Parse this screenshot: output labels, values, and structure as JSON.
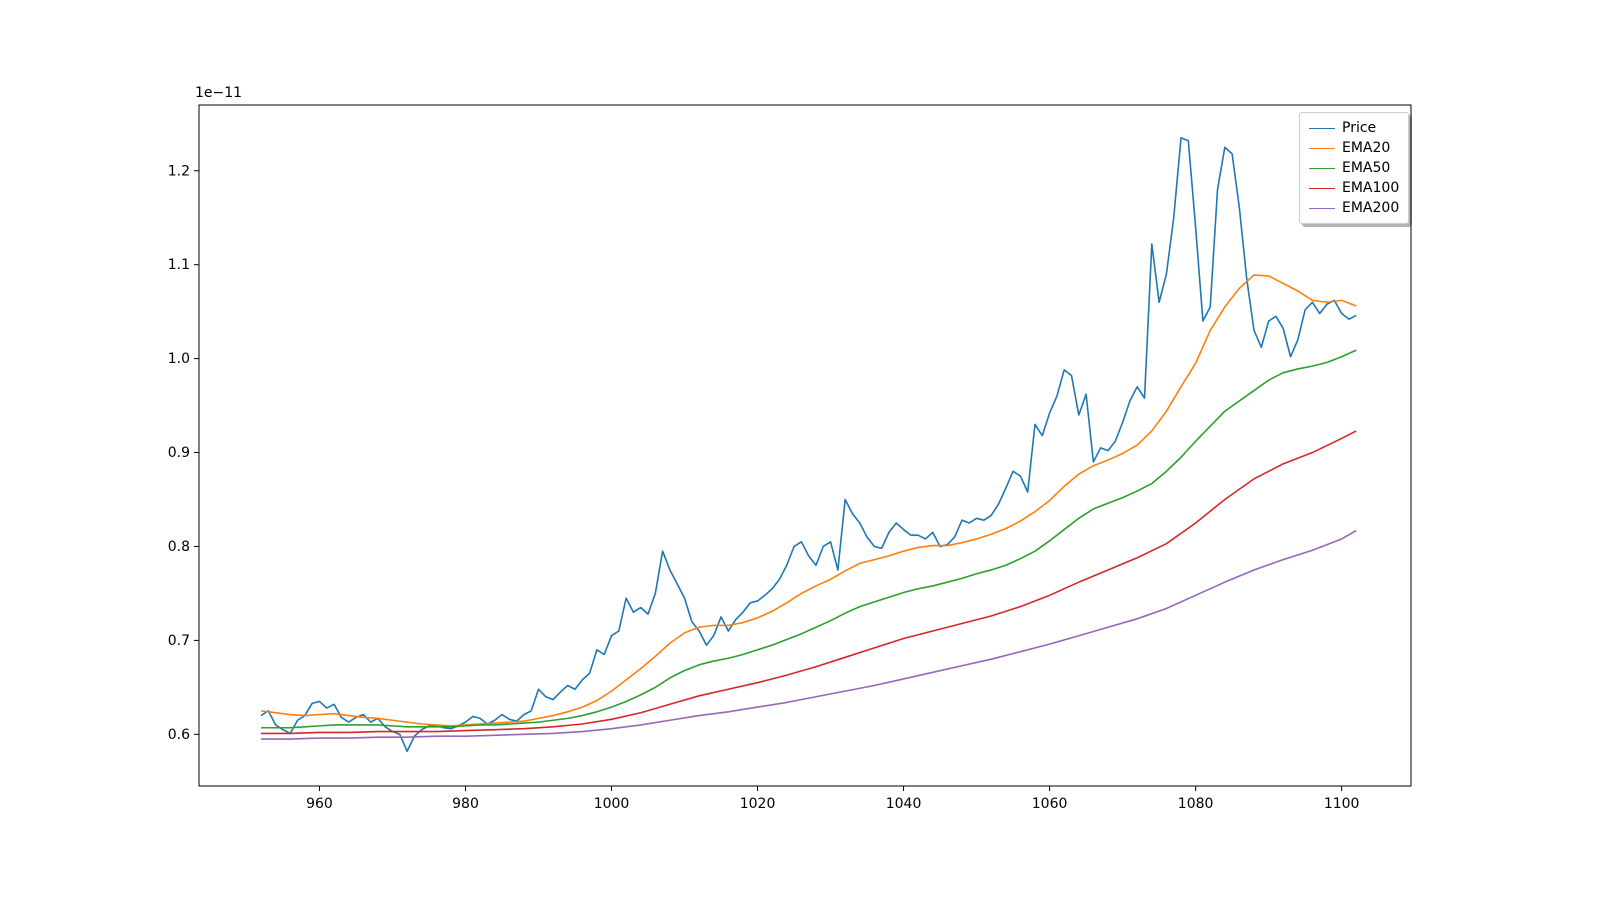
{
  "figure": {
    "background": "#ffffff"
  },
  "chart_data": {
    "type": "line",
    "title": "",
    "xlabel": "",
    "ylabel": "",
    "grid": false,
    "x_axis": {
      "lim": [
        943.5,
        1109.5
      ],
      "ticks": [
        960,
        980,
        1000,
        1020,
        1040,
        1060,
        1080,
        1100
      ],
      "tick_labels": [
        "960",
        "980",
        "1000",
        "1020",
        "1040",
        "1060",
        "1080",
        "1100"
      ]
    },
    "y_axis": {
      "lim": [
        0.545,
        1.27
      ],
      "ticks": [
        0.6,
        0.7,
        0.8,
        0.9,
        1.0,
        1.1,
        1.2
      ],
      "tick_labels": [
        "0.6",
        "0.7",
        "0.8",
        "0.9",
        "1.0",
        "1.1",
        "1.2"
      ],
      "offset_label": "1e−11",
      "scale_factor": "1e-11"
    },
    "legend": {
      "position": "upper right"
    },
    "series": [
      {
        "name": "Price",
        "color": "#1f77b4",
        "x": [
          952,
          953,
          954,
          955,
          956,
          957,
          958,
          959,
          960,
          961,
          962,
          963,
          964,
          965,
          966,
          967,
          968,
          969,
          970,
          971,
          972,
          973,
          974,
          975,
          976,
          977,
          978,
          979,
          980,
          981,
          982,
          983,
          984,
          985,
          986,
          987,
          988,
          989,
          990,
          991,
          992,
          993,
          994,
          995,
          996,
          997,
          998,
          999,
          1000,
          1001,
          1002,
          1003,
          1004,
          1005,
          1006,
          1007,
          1008,
          1009,
          1010,
          1011,
          1012,
          1013,
          1014,
          1015,
          1016,
          1017,
          1018,
          1019,
          1020,
          1021,
          1022,
          1023,
          1024,
          1025,
          1026,
          1027,
          1028,
          1029,
          1030,
          1031,
          1032,
          1033,
          1034,
          1035,
          1036,
          1037,
          1038,
          1039,
          1040,
          1041,
          1042,
          1043,
          1044,
          1045,
          1046,
          1047,
          1048,
          1049,
          1050,
          1051,
          1052,
          1053,
          1054,
          1055,
          1056,
          1057,
          1058,
          1059,
          1060,
          1061,
          1062,
          1063,
          1064,
          1065,
          1066,
          1067,
          1068,
          1069,
          1070,
          1071,
          1072,
          1073,
          1074,
          1075,
          1076,
          1077,
          1078,
          1079,
          1080,
          1081,
          1082,
          1083,
          1084,
          1085,
          1086,
          1087,
          1088,
          1089,
          1090,
          1091,
          1092,
          1093,
          1094,
          1095,
          1096,
          1097,
          1098,
          1099,
          1100,
          1101,
          1102
        ],
        "y": [
          0.62,
          0.625,
          0.61,
          0.605,
          0.601,
          0.615,
          0.62,
          0.633,
          0.635,
          0.628,
          0.632,
          0.618,
          0.613,
          0.618,
          0.621,
          0.613,
          0.617,
          0.608,
          0.603,
          0.6,
          0.582,
          0.598,
          0.605,
          0.609,
          0.61,
          0.607,
          0.606,
          0.609,
          0.613,
          0.619,
          0.617,
          0.611,
          0.615,
          0.621,
          0.616,
          0.614,
          0.621,
          0.625,
          0.648,
          0.64,
          0.637,
          0.645,
          0.652,
          0.648,
          0.658,
          0.665,
          0.69,
          0.685,
          0.705,
          0.71,
          0.745,
          0.73,
          0.735,
          0.728,
          0.75,
          0.795,
          0.775,
          0.76,
          0.745,
          0.72,
          0.71,
          0.695,
          0.705,
          0.725,
          0.71,
          0.722,
          0.73,
          0.74,
          0.742,
          0.748,
          0.755,
          0.765,
          0.78,
          0.8,
          0.805,
          0.79,
          0.78,
          0.8,
          0.805,
          0.775,
          0.85,
          0.835,
          0.825,
          0.81,
          0.8,
          0.798,
          0.815,
          0.825,
          0.818,
          0.812,
          0.812,
          0.808,
          0.815,
          0.8,
          0.802,
          0.81,
          0.828,
          0.825,
          0.83,
          0.828,
          0.833,
          0.845,
          0.862,
          0.88,
          0.875,
          0.858,
          0.93,
          0.918,
          0.942,
          0.96,
          0.988,
          0.982,
          0.94,
          0.962,
          0.89,
          0.905,
          0.902,
          0.912,
          0.932,
          0.955,
          0.97,
          0.958,
          1.122,
          1.06,
          1.09,
          1.15,
          1.235,
          1.232,
          1.14,
          1.04,
          1.055,
          1.18,
          1.225,
          1.218,
          1.16,
          1.085,
          1.03,
          1.012,
          1.04,
          1.045,
          1.032,
          1.002,
          1.02,
          1.052,
          1.06,
          1.048,
          1.058,
          1.062,
          1.048,
          1.042,
          1.046
        ]
      },
      {
        "name": "EMA20",
        "color": "#ff7f0e",
        "x": [
          952,
          954,
          956,
          958,
          960,
          962,
          964,
          966,
          968,
          970,
          972,
          974,
          976,
          978,
          980,
          982,
          984,
          986,
          988,
          990,
          992,
          994,
          996,
          998,
          1000,
          1002,
          1004,
          1006,
          1008,
          1010,
          1012,
          1014,
          1016,
          1018,
          1020,
          1022,
          1024,
          1026,
          1028,
          1030,
          1032,
          1034,
          1036,
          1038,
          1040,
          1042,
          1044,
          1046,
          1048,
          1050,
          1052,
          1054,
          1056,
          1058,
          1060,
          1062,
          1064,
          1066,
          1068,
          1070,
          1072,
          1074,
          1076,
          1078,
          1080,
          1082,
          1084,
          1086,
          1088,
          1090,
          1092,
          1094,
          1096,
          1098,
          1100,
          1102
        ],
        "y": [
          0.625,
          0.623,
          0.621,
          0.62,
          0.621,
          0.622,
          0.62,
          0.618,
          0.617,
          0.615,
          0.613,
          0.611,
          0.61,
          0.609,
          0.61,
          0.611,
          0.612,
          0.613,
          0.614,
          0.617,
          0.62,
          0.624,
          0.629,
          0.636,
          0.646,
          0.658,
          0.67,
          0.683,
          0.697,
          0.708,
          0.714,
          0.716,
          0.716,
          0.719,
          0.724,
          0.731,
          0.74,
          0.75,
          0.758,
          0.765,
          0.774,
          0.782,
          0.786,
          0.79,
          0.795,
          0.799,
          0.801,
          0.801,
          0.804,
          0.808,
          0.813,
          0.819,
          0.827,
          0.837,
          0.849,
          0.864,
          0.877,
          0.886,
          0.892,
          0.899,
          0.908,
          0.923,
          0.944,
          0.97,
          0.995,
          1.03,
          1.055,
          1.075,
          1.089,
          1.088,
          1.08,
          1.072,
          1.062,
          1.06,
          1.062,
          1.056
        ]
      },
      {
        "name": "EMA50",
        "color": "#2ca02c",
        "x": [
          952,
          954,
          956,
          958,
          960,
          962,
          964,
          966,
          968,
          970,
          972,
          974,
          976,
          978,
          980,
          982,
          984,
          986,
          988,
          990,
          992,
          994,
          996,
          998,
          1000,
          1002,
          1004,
          1006,
          1008,
          1010,
          1012,
          1014,
          1016,
          1018,
          1020,
          1022,
          1024,
          1026,
          1028,
          1030,
          1032,
          1034,
          1036,
          1038,
          1040,
          1042,
          1044,
          1046,
          1048,
          1050,
          1052,
          1054,
          1056,
          1058,
          1060,
          1062,
          1064,
          1066,
          1068,
          1070,
          1072,
          1074,
          1076,
          1078,
          1080,
          1082,
          1084,
          1086,
          1088,
          1090,
          1092,
          1094,
          1096,
          1098,
          1100,
          1102
        ],
        "y": [
          0.607,
          0.607,
          0.607,
          0.608,
          0.609,
          0.61,
          0.61,
          0.61,
          0.61,
          0.609,
          0.608,
          0.608,
          0.608,
          0.608,
          0.609,
          0.61,
          0.61,
          0.611,
          0.612,
          0.613,
          0.615,
          0.617,
          0.62,
          0.624,
          0.629,
          0.635,
          0.642,
          0.65,
          0.66,
          0.668,
          0.674,
          0.678,
          0.681,
          0.685,
          0.69,
          0.695,
          0.701,
          0.707,
          0.714,
          0.721,
          0.729,
          0.736,
          0.741,
          0.746,
          0.751,
          0.755,
          0.758,
          0.762,
          0.766,
          0.771,
          0.775,
          0.78,
          0.787,
          0.795,
          0.806,
          0.818,
          0.83,
          0.84,
          0.846,
          0.852,
          0.859,
          0.867,
          0.88,
          0.895,
          0.912,
          0.928,
          0.944,
          0.955,
          0.966,
          0.977,
          0.985,
          0.989,
          0.992,
          0.996,
          1.002,
          1.009
        ]
      },
      {
        "name": "EMA100",
        "color": "#d62728",
        "x": [
          952,
          956,
          960,
          964,
          968,
          972,
          976,
          980,
          984,
          988,
          992,
          996,
          1000,
          1004,
          1008,
          1012,
          1016,
          1020,
          1024,
          1028,
          1032,
          1036,
          1040,
          1044,
          1048,
          1052,
          1056,
          1060,
          1064,
          1068,
          1072,
          1076,
          1080,
          1084,
          1088,
          1092,
          1096,
          1100,
          1102
        ],
        "y": [
          0.601,
          0.601,
          0.602,
          0.602,
          0.603,
          0.603,
          0.603,
          0.604,
          0.605,
          0.606,
          0.608,
          0.611,
          0.616,
          0.623,
          0.632,
          0.641,
          0.648,
          0.655,
          0.663,
          0.672,
          0.682,
          0.692,
          0.702,
          0.71,
          0.718,
          0.726,
          0.736,
          0.748,
          0.762,
          0.775,
          0.788,
          0.803,
          0.825,
          0.85,
          0.872,
          0.888,
          0.9,
          0.915,
          0.923
        ]
      },
      {
        "name": "EMA200",
        "color": "#9467bd",
        "x": [
          952,
          956,
          960,
          964,
          968,
          972,
          976,
          980,
          984,
          988,
          992,
          996,
          1000,
          1004,
          1008,
          1012,
          1016,
          1020,
          1024,
          1028,
          1032,
          1036,
          1040,
          1044,
          1048,
          1052,
          1056,
          1060,
          1064,
          1068,
          1072,
          1076,
          1080,
          1084,
          1088,
          1092,
          1096,
          1100,
          1102
        ],
        "y": [
          0.595,
          0.595,
          0.596,
          0.596,
          0.597,
          0.597,
          0.598,
          0.598,
          0.599,
          0.6,
          0.601,
          0.603,
          0.606,
          0.61,
          0.615,
          0.62,
          0.624,
          0.629,
          0.634,
          0.64,
          0.646,
          0.652,
          0.659,
          0.666,
          0.673,
          0.68,
          0.688,
          0.696,
          0.705,
          0.714,
          0.723,
          0.734,
          0.748,
          0.762,
          0.775,
          0.786,
          0.796,
          0.808,
          0.817
        ]
      }
    ]
  }
}
